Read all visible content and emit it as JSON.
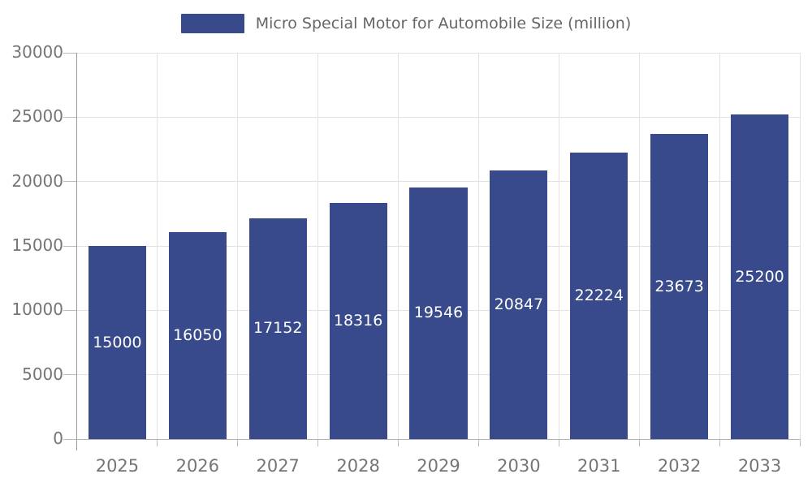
{
  "chart_data": {
    "type": "bar",
    "title": "Micro Special Motor for Automobile Size (million)",
    "legend_entries": [
      "Micro Special Motor for Automobile Size (million)"
    ],
    "legend_position": "top-center",
    "categories": [
      "2025",
      "2026",
      "2027",
      "2028",
      "2029",
      "2030",
      "2031",
      "2032",
      "2033"
    ],
    "values": [
      15000,
      16050,
      17152,
      18316,
      19546,
      20847,
      22224,
      23673,
      25200
    ],
    "xlabel": "",
    "ylabel": "",
    "ylim": [
      0,
      30000
    ],
    "yticks": [
      0,
      5000,
      10000,
      15000,
      20000,
      25000,
      30000
    ],
    "grid": true,
    "colors": {
      "bar": "#384A8C",
      "bar_label": "#ffffff",
      "axis_text": "#757575",
      "legend_text": "#666666",
      "gridline": "#e3e3e3",
      "y_axis_line": "#999999",
      "x_axis_line": "#b3b3b3",
      "tick": "#bbbbbb"
    }
  }
}
